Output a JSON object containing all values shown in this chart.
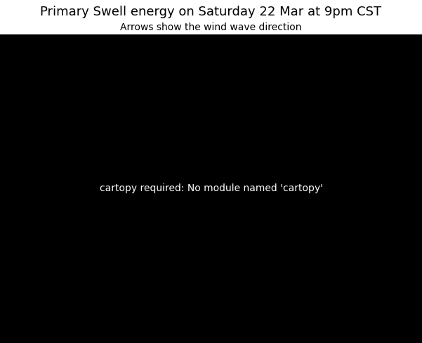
{
  "title": "Primary Swell energy on Saturday 22 Mar at 9pm CST",
  "subtitle": "Arrows show the wind wave direction",
  "title_fontsize": 13,
  "subtitle_fontsize": 10,
  "title_bg": "#ffffff",
  "fig_width": 6.01,
  "fig_height": 4.88,
  "dpi": 100,
  "land_color_light": "#b8b8b8",
  "land_color_dark": "#787878",
  "ocean_color": "#000000",
  "lakes_color": "#000000",
  "border_color": "#000000",
  "state_border_color": "#000000",
  "swell_colors": [
    "#fffff5",
    "#eeffee",
    "#bbffff",
    "#88ddff",
    "#4499ff",
    "#1144dd",
    "#000066"
  ],
  "arrow_color": "#00bbaa",
  "grid_color": "#555555",
  "title_border_color": "#aaaaaa"
}
